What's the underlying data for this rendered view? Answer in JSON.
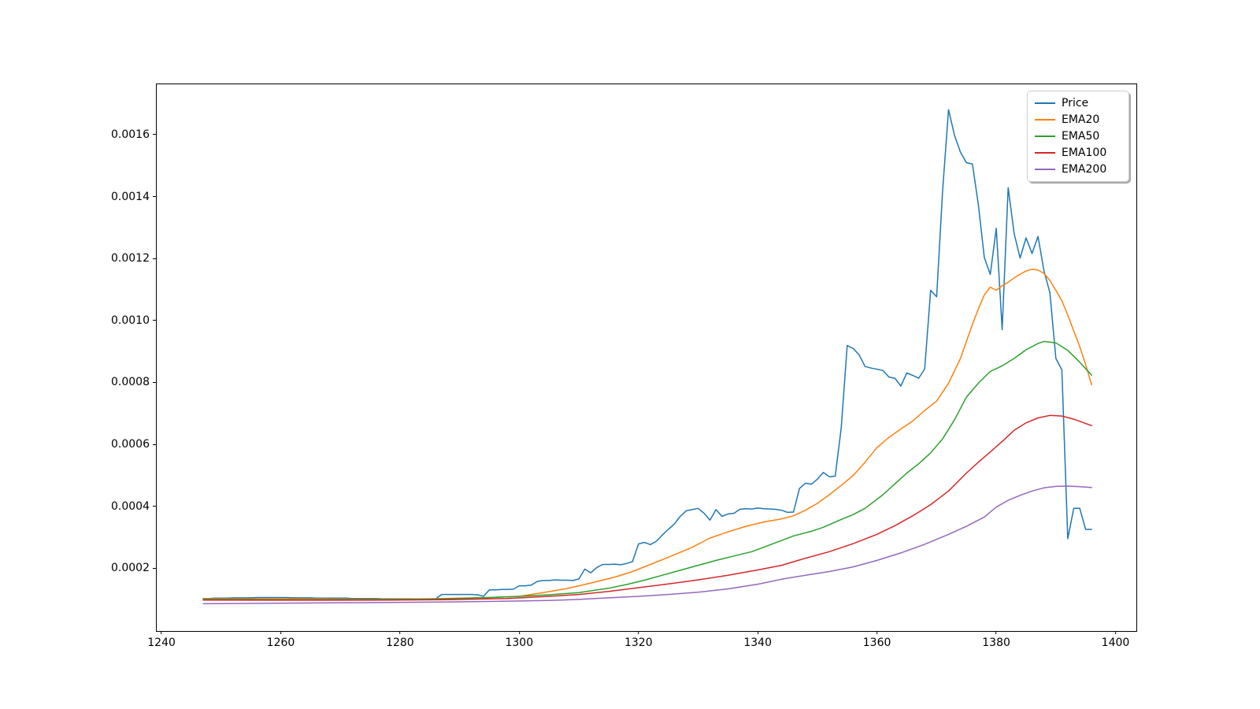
{
  "figure": {
    "background": "#ffffff"
  },
  "chart_data": {
    "type": "line",
    "title": "",
    "xlabel": "",
    "ylabel": "",
    "grid": false,
    "xlim": [
      1239.2,
      1403.5
    ],
    "ylim": [
      0.0,
      0.001765
    ],
    "xticks": [
      1240,
      1260,
      1280,
      1300,
      1320,
      1340,
      1360,
      1380,
      1400
    ],
    "xtick_labels": [
      "1240",
      "1260",
      "1280",
      "1300",
      "1320",
      "1340",
      "1360",
      "1380",
      "1400"
    ],
    "yticks": [
      0.0002,
      0.0004,
      0.0006,
      0.0008,
      0.001,
      0.0012,
      0.0014,
      0.0016
    ],
    "ytick_labels": [
      "0.0002",
      "0.0004",
      "0.0006",
      "0.0008",
      "0.0010",
      "0.0012",
      "0.0014",
      "0.0016"
    ],
    "legend": {
      "position": "upper right",
      "entries": [
        "Price",
        "EMA20",
        "EMA50",
        "EMA100",
        "EMA200"
      ]
    },
    "series": [
      {
        "name": "Price",
        "color": "#1f77b4",
        "x_start": 1247,
        "x_step": 1,
        "values": [
          0.000105,
          0.000105,
          0.000106,
          0.000106,
          0.000106,
          0.000107,
          0.000107,
          0.000107,
          0.000107,
          0.000108,
          0.000108,
          0.000108,
          0.000108,
          0.000108,
          0.000108,
          0.000107,
          0.000107,
          0.000107,
          0.000107,
          0.000106,
          0.000106,
          0.000106,
          0.000106,
          0.000106,
          0.000106,
          0.000105,
          0.000105,
          0.000105,
          0.000105,
          0.000105,
          0.000104,
          0.000104,
          0.000104,
          0.000104,
          0.000104,
          0.000104,
          0.000103,
          0.000103,
          0.000103,
          0.000104,
          0.000118,
          0.000118,
          0.000118,
          0.000118,
          0.000118,
          0.000118,
          0.000117,
          0.000112,
          0.000133,
          0.000133,
          0.000134,
          0.000134,
          0.000135,
          0.000146,
          0.000146,
          0.000148,
          0.00016,
          0.000163,
          0.000163,
          0.000165,
          0.000164,
          0.000164,
          0.000163,
          0.000168,
          0.0002,
          0.000188,
          0.000205,
          0.000215,
          0.000215,
          0.000216,
          0.000214,
          0.000218,
          0.000224,
          0.000281,
          0.000286,
          0.000279,
          0.00029,
          0.00031,
          0.000328,
          0.000345,
          0.00037,
          0.000388,
          0.000392,
          0.000396,
          0.00038,
          0.000358,
          0.000392,
          0.00037,
          0.000378,
          0.00038,
          0.000393,
          0.000395,
          0.000394,
          0.000397,
          0.000395,
          0.000394,
          0.000393,
          0.00039,
          0.000383,
          0.000384,
          0.00046,
          0.000477,
          0.000474,
          0.00049,
          0.000512,
          0.000498,
          0.0005,
          0.000655,
          0.000922,
          0.000912,
          0.000892,
          0.000854,
          0.000849,
          0.000845,
          0.000841,
          0.00082,
          0.000816,
          0.000791,
          0.000833,
          0.000825,
          0.000816,
          0.000846,
          0.0011,
          0.001079,
          0.001419,
          0.001683,
          0.0016,
          0.001546,
          0.001512,
          0.001508,
          0.001376,
          0.001206,
          0.001151,
          0.0013,
          0.000973,
          0.001431,
          0.001283,
          0.001204,
          0.001269,
          0.001219,
          0.001274,
          0.001164,
          0.001092,
          0.00088,
          0.000843,
          0.000298,
          0.000396,
          0.000396,
          0.000328,
          0.000328
        ]
      },
      {
        "name": "EMA20",
        "color": "#ff7f0e",
        "x": [
          1247,
          1255,
          1263,
          1271,
          1279,
          1285,
          1290,
          1295,
          1300,
          1304,
          1308,
          1312,
          1316,
          1319,
          1322,
          1325,
          1329,
          1332,
          1335,
          1338,
          1341,
          1344,
          1346,
          1348,
          1350,
          1352,
          1354,
          1356,
          1358,
          1360,
          1362,
          1364,
          1366,
          1368,
          1370,
          1372,
          1374,
          1376,
          1377,
          1378,
          1379,
          1380,
          1381,
          1382,
          1383,
          1384,
          1385,
          1386,
          1387,
          1388,
          1389,
          1390,
          1391,
          1392,
          1393,
          1394,
          1395,
          1396
        ],
        "values": [
          0.000104,
          0.000104,
          0.000104,
          0.000103,
          0.000103,
          0.000104,
          0.000106,
          0.000108,
          0.000112,
          0.000124,
          0.000137,
          0.000155,
          0.000174,
          0.000192,
          0.000215,
          0.000238,
          0.00027,
          0.0003,
          0.00032,
          0.000338,
          0.000352,
          0.000362,
          0.000372,
          0.00039,
          0.000412,
          0.00044,
          0.00047,
          0.000502,
          0.000545,
          0.000592,
          0.000625,
          0.000652,
          0.000678,
          0.000712,
          0.000742,
          0.0008,
          0.00088,
          0.00099,
          0.00104,
          0.001085,
          0.00111,
          0.0011,
          0.001115,
          0.001126,
          0.00114,
          0.001152,
          0.001162,
          0.001168,
          0.001165,
          0.001155,
          0.001132,
          0.0011,
          0.001066,
          0.00102,
          0.000969,
          0.000918,
          0.00086,
          0.000795
        ]
      },
      {
        "name": "EMA50",
        "color": "#2ca02c",
        "x": [
          1247,
          1258,
          1268,
          1278,
          1288,
          1295,
          1300,
          1305,
          1310,
          1315,
          1318,
          1321,
          1324,
          1327,
          1330,
          1333,
          1336,
          1339,
          1343,
          1346,
          1349,
          1351,
          1354,
          1356,
          1358,
          1361,
          1363,
          1365,
          1367,
          1369,
          1371,
          1373,
          1375,
          1377,
          1379,
          1381,
          1383,
          1385,
          1387,
          1388,
          1390,
          1392,
          1394,
          1396
        ],
        "values": [
          0.000102,
          0.000101,
          0.000101,
          0.000102,
          0.000104,
          0.000108,
          0.000112,
          0.000117,
          0.000124,
          0.000138,
          0.00015,
          0.000164,
          0.00018,
          0.000196,
          0.000212,
          0.000228,
          0.000242,
          0.000256,
          0.000285,
          0.000307,
          0.000322,
          0.000335,
          0.00036,
          0.000376,
          0.000396,
          0.00044,
          0.000475,
          0.00051,
          0.00054,
          0.000575,
          0.00062,
          0.000682,
          0.000755,
          0.0008,
          0.000838,
          0.000856,
          0.00088,
          0.000908,
          0.000928,
          0.000935,
          0.00093,
          0.000906,
          0.000868,
          0.000826
        ]
      },
      {
        "name": "EMA100",
        "color": "#d62728",
        "x": [
          1247,
          1258,
          1268,
          1278,
          1288,
          1298,
          1305,
          1310,
          1315,
          1320,
          1325,
          1330,
          1335,
          1340,
          1344,
          1348,
          1352,
          1356,
          1360,
          1363,
          1366,
          1369,
          1372,
          1375,
          1377,
          1379,
          1381,
          1383,
          1385,
          1387,
          1389,
          1391,
          1393,
          1395,
          1396
        ],
        "values": [
          0.0001,
          9.95e-05,
          9.95e-05,
          0.0001,
          0.000101,
          0.000105,
          0.000112,
          0.000118,
          0.000128,
          0.00014,
          0.000152,
          0.000165,
          0.00018,
          0.000197,
          0.000212,
          0.000235,
          0.000256,
          0.000282,
          0.000312,
          0.00034,
          0.000372,
          0.000408,
          0.000452,
          0.00051,
          0.000545,
          0.000578,
          0.000612,
          0.000648,
          0.000672,
          0.000688,
          0.000696,
          0.000694,
          0.000684,
          0.00067,
          0.000663
        ]
      },
      {
        "name": "EMA200",
        "color": "#9467bd",
        "x": [
          1247,
          1258,
          1268,
          1278,
          1288,
          1298,
          1305,
          1310,
          1315,
          1320,
          1325,
          1330,
          1335,
          1340,
          1344,
          1348,
          1352,
          1356,
          1360,
          1364,
          1368,
          1372,
          1375,
          1378,
          1380,
          1382,
          1384,
          1386,
          1388,
          1390,
          1392,
          1394,
          1396
        ],
        "values": [
          8.8e-05,
          8.95e-05,
          9.07e-05,
          9.2e-05,
          9.38e-05,
          9.65e-05,
          9.88e-05,
          0.000102,
          0.000107,
          0.000112,
          0.000118,
          0.000125,
          0.000136,
          0.000151,
          0.000167,
          0.00018,
          0.000192,
          0.000207,
          0.000228,
          0.000252,
          0.00028,
          0.000312,
          0.000338,
          0.000368,
          0.0004,
          0.000422,
          0.000438,
          0.000452,
          0.000462,
          0.000467,
          0.000468,
          0.000466,
          0.000463
        ]
      }
    ]
  }
}
